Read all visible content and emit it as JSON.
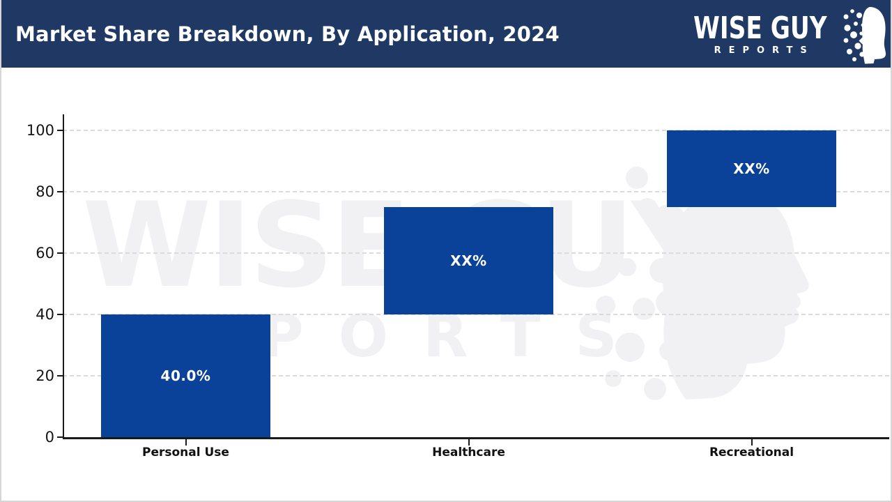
{
  "header": {
    "title": "Market Share Breakdown, By Application, 2024",
    "logo": {
      "line1": "WISE GUY",
      "line2": "REPORTS"
    }
  },
  "watermark": {
    "line1": "WISE GUY",
    "line2": "REPORTS"
  },
  "chart_data": {
    "type": "bar",
    "subtype": "floating-waterfall",
    "title": "Market Share Breakdown, By Application, 2024",
    "categories": [
      "Personal Use",
      "Healthcare",
      "Recreational"
    ],
    "bars": [
      {
        "category": "Personal Use",
        "start": 0,
        "end": 40,
        "label": "40.0%"
      },
      {
        "category": "Healthcare",
        "start": 40,
        "end": 75,
        "label": "XX%"
      },
      {
        "category": "Recreational",
        "start": 75,
        "end": 100,
        "label": "XX%"
      }
    ],
    "ylim": [
      0,
      105
    ],
    "yticks": [
      0,
      20,
      40,
      60,
      80,
      100
    ],
    "xlabel": "",
    "ylabel": "",
    "grid": "horizontal-dashed",
    "legend": "none"
  },
  "colors": {
    "header_bg": "#1f3864",
    "bar": "#0a4299",
    "bar_label": "#ffffff",
    "grid": "#dadada",
    "axis": "#1a1a1a",
    "watermark": "#f1f1f4",
    "page_border": "#d6d6d6"
  }
}
